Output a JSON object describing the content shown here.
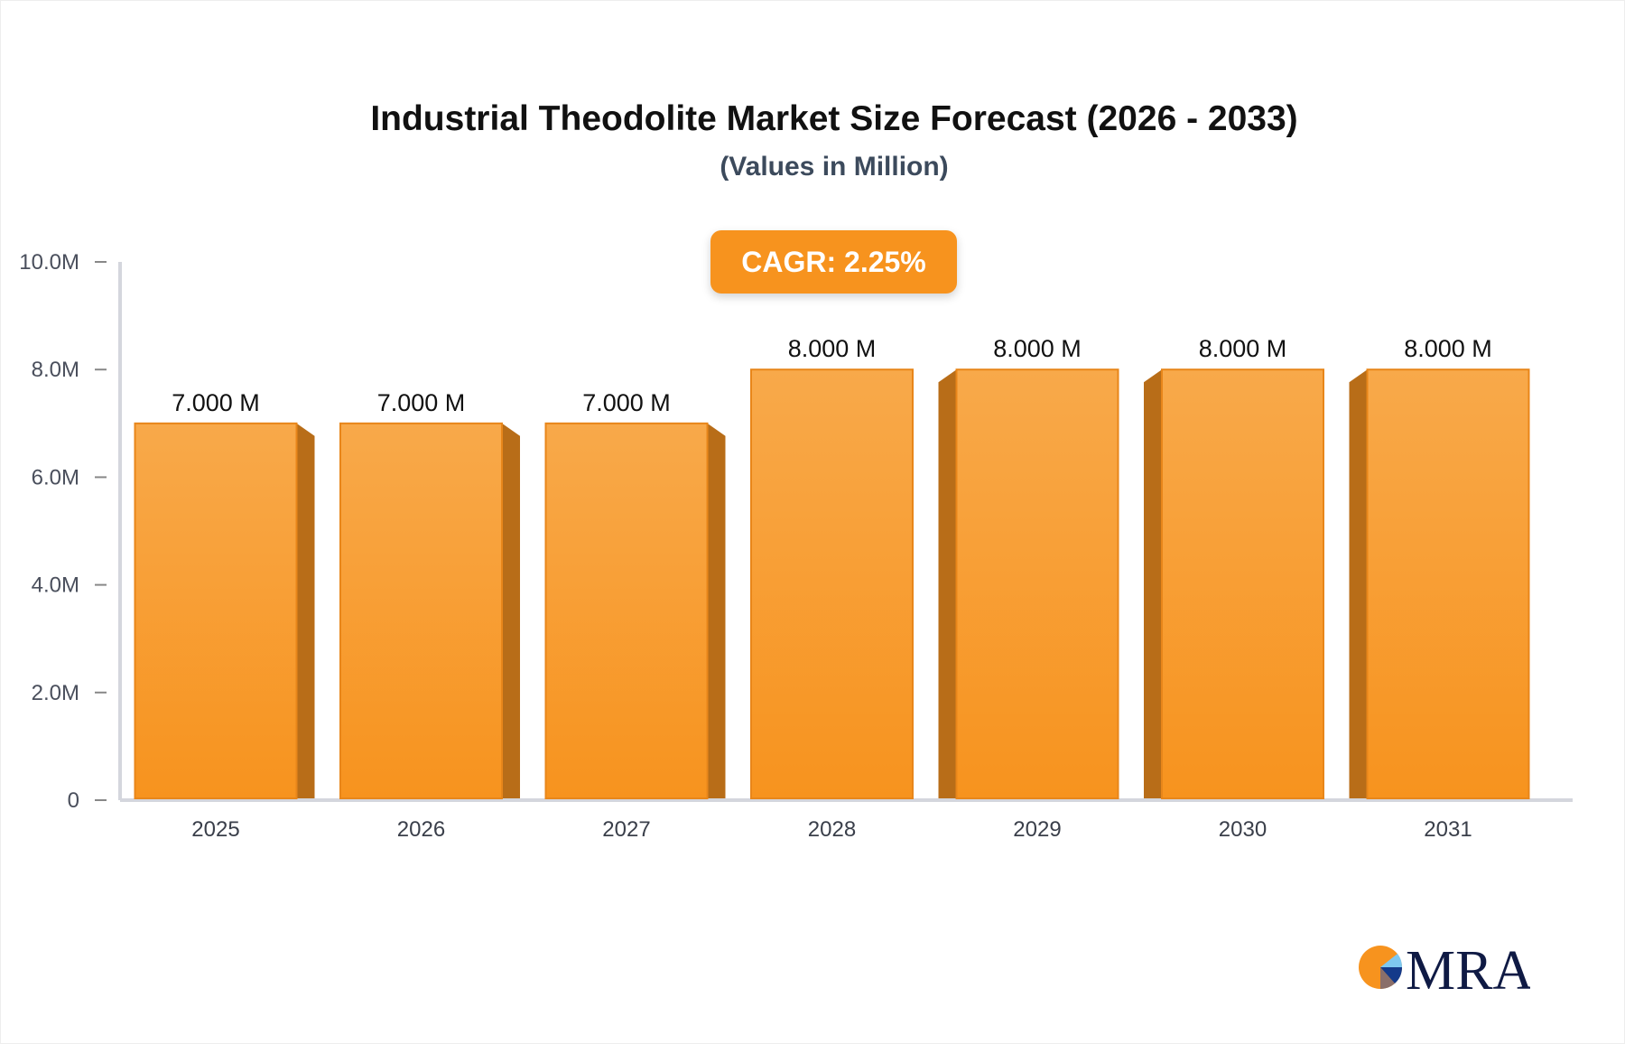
{
  "chart_data": {
    "type": "bar",
    "title": "Industrial Theodolite Market Size Forecast (2026 - 2033)",
    "subtitle": "(Values in Million)",
    "annotation": "CAGR: 2.25%",
    "categories": [
      "2025",
      "2026",
      "2027",
      "2028",
      "2029",
      "2030",
      "2031"
    ],
    "values": [
      7.0,
      7.0,
      7.0,
      8.0,
      8.0,
      8.0,
      8.0
    ],
    "data_labels": [
      "7.000 M",
      "7.000 M",
      "7.000 M",
      "8.000 M",
      "8.000 M",
      "8.000 M",
      "8.000 M"
    ],
    "ylim": [
      0,
      10
    ],
    "yticks": [
      0,
      2,
      4,
      6,
      8,
      10
    ],
    "ytick_labels": [
      "0",
      "2.0M",
      "4.0M",
      "6.0M",
      "8.0M",
      "10.0M"
    ],
    "xlabel": "",
    "ylabel": "",
    "grid": false,
    "colors": {
      "bar_top": "#f8a94a",
      "bar_bottom": "#f7931e",
      "bar_side": "#b86d18",
      "badge": "#f7931e"
    }
  },
  "logo": {
    "text": "MRA"
  }
}
